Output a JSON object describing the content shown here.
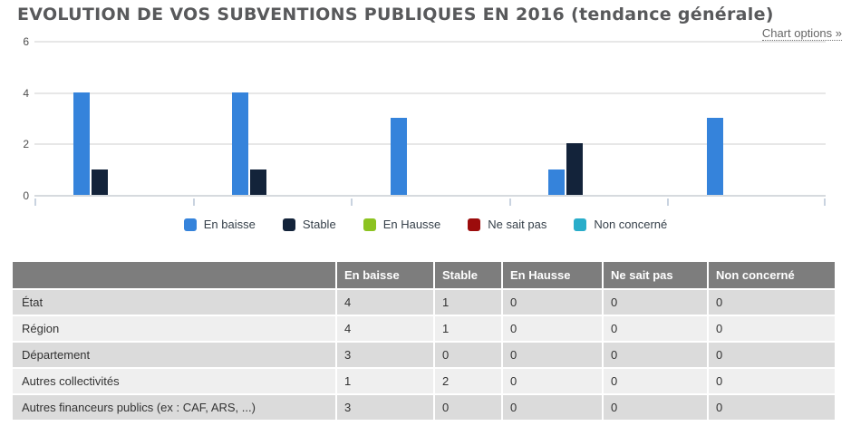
{
  "header": {
    "title": "EVOLUTION DE VOS SUBVENTIONS PUBLIQUES EN 2016 (tendance générale)",
    "chart_options_label": "Chart options »"
  },
  "colors": {
    "en_baisse": "#3583db",
    "stable": "#13233a",
    "en_hausse": "#8cc321",
    "ne_sait_pas": "#9c0c0c",
    "non_concerne": "#29adca",
    "table_header_bg": "#7d7d7d",
    "row_dark": "#dbdbdb",
    "row_light": "#efefef",
    "gridline": "#e7e7e7"
  },
  "chart_data": {
    "type": "bar",
    "title": "EVOLUTION DE VOS SUBVENTIONS PUBLIQUES EN 2016 (tendance générale)",
    "categories": [
      "État",
      "Région",
      "Département",
      "Autres collectivités",
      "Autres financeurs publics (ex : CAF, ARS, ...)"
    ],
    "x_tick_labels_visible": false,
    "series": [
      {
        "name": "En baisse",
        "color": "#3583db",
        "values": [
          4,
          4,
          3,
          1,
          3
        ]
      },
      {
        "name": "Stable",
        "color": "#13233a",
        "values": [
          1,
          1,
          0,
          2,
          0
        ]
      },
      {
        "name": "En Hausse",
        "color": "#8cc321",
        "values": [
          0,
          0,
          0,
          0,
          0
        ]
      },
      {
        "name": "Ne sait pas",
        "color": "#9c0c0c",
        "values": [
          0,
          0,
          0,
          0,
          0
        ]
      },
      {
        "name": "Non concerné",
        "color": "#29adca",
        "values": [
          0,
          0,
          0,
          0,
          0
        ]
      }
    ],
    "ylim": [
      0,
      6
    ],
    "yticks": [
      0,
      2,
      4,
      6
    ],
    "xlabel": "",
    "ylabel": "",
    "grid": true,
    "legend_position": "bottom-center"
  },
  "table": {
    "columns": [
      "",
      "En baisse",
      "Stable",
      "En Hausse",
      "Ne sait pas",
      "Non concerné"
    ],
    "rows": [
      {
        "label": "État",
        "values": [
          4,
          1,
          0,
          0,
          0
        ]
      },
      {
        "label": "Région",
        "values": [
          4,
          1,
          0,
          0,
          0
        ]
      },
      {
        "label": "Département",
        "values": [
          3,
          0,
          0,
          0,
          0
        ]
      },
      {
        "label": "Autres collectivités",
        "values": [
          1,
          2,
          0,
          0,
          0
        ]
      },
      {
        "label": "Autres financeurs publics (ex : CAF, ARS, ...)",
        "values": [
          3,
          0,
          0,
          0,
          0
        ]
      }
    ]
  }
}
